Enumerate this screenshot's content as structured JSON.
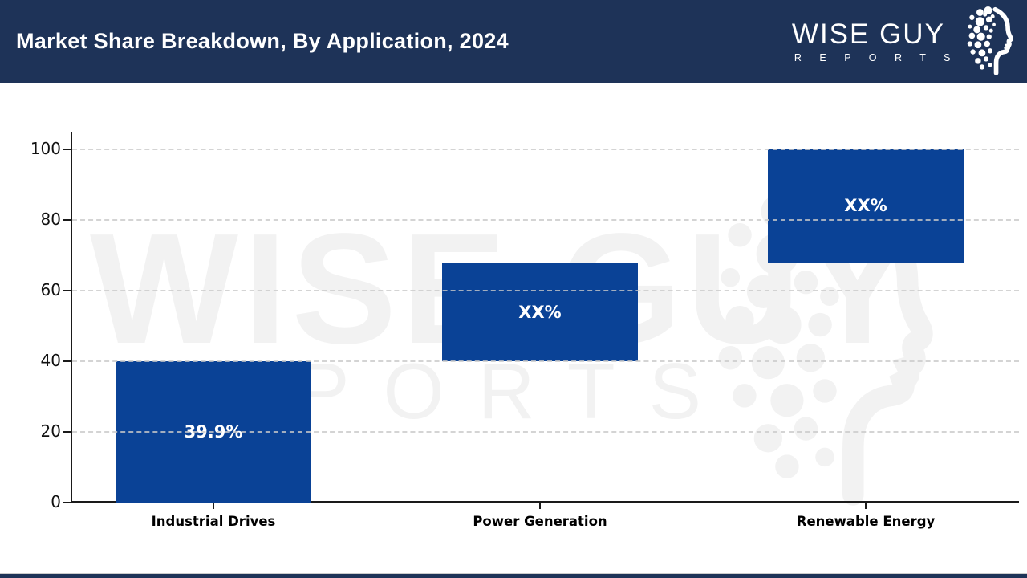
{
  "header": {
    "title": "Market Share Breakdown, By Application, 2024",
    "bg_color": "#1e3358",
    "logo": {
      "line1": "WISE GUY",
      "line2": "R E P O R T S"
    }
  },
  "watermark": {
    "line1": "WISE GUY",
    "line2": "REPORTS"
  },
  "footer": {
    "bg_color": "#1e3358"
  },
  "chart_data": {
    "type": "bar",
    "subtype": "waterfall",
    "title": "Market Share Breakdown, By Application, 2024",
    "categories": [
      "Industrial Drives",
      "Power Generation",
      "Renewable Energy"
    ],
    "segments": [
      {
        "category": "Industrial Drives",
        "start": 0,
        "end": 39.9,
        "label": "39.9%"
      },
      {
        "category": "Power Generation",
        "start": 39.9,
        "end": 68,
        "label": "XX%"
      },
      {
        "category": "Renewable Energy",
        "start": 68,
        "end": 100,
        "label": "XX%"
      }
    ],
    "ylim": [
      0,
      105
    ],
    "yticks": [
      0,
      20,
      40,
      60,
      80,
      100
    ],
    "grid": "horizontal-dashed",
    "legend": "none",
    "bar_color": "#0a4296",
    "bar_label_color": "#ffffff",
    "axis_color": "#1a1a1a",
    "gridline_color": "#c9c9c9"
  }
}
